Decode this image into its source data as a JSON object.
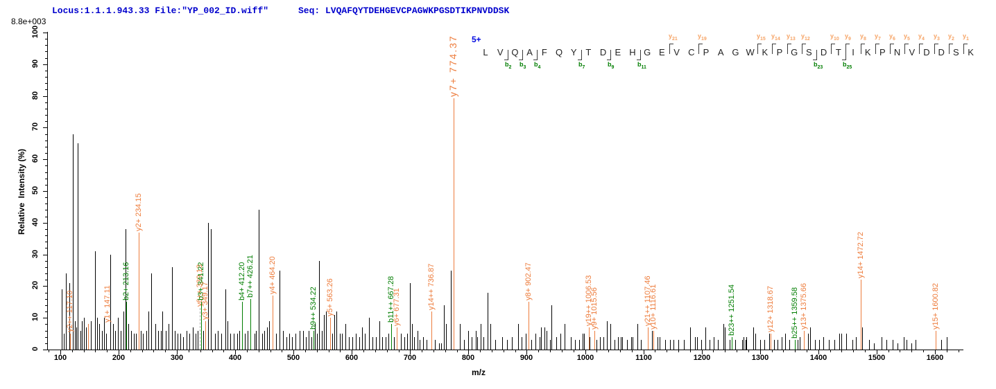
{
  "header": {
    "locus_file": "Locus:1.1.1.943.33 File:\"YP_002_ID.wiff\"",
    "seq_label": "Seq: LVQAFQYTDEHGEVCPAGWKPGSDTIKPNVDDSK",
    "intensity_scale": "8.8e+003"
  },
  "colors": {
    "header_blue": "#0000CD",
    "y_ion": "#ED7C3C",
    "b_ion": "#007D00",
    "y_seq_label": "#F6A365",
    "peak_black": "#000000",
    "dashed_gray": "#ABABAB",
    "axis": "#000000"
  },
  "sequence": {
    "charge_label": "5+",
    "residues": "LVQAFQYTDEHGEVCPAGWKPGSDTIKPNVDDSK",
    "y_ions": [
      {
        "base": "y",
        "count": 21
      },
      {
        "base": "y",
        "count": 19
      },
      {
        "base": "y",
        "count": 15
      },
      {
        "base": "y",
        "count": 14
      },
      {
        "base": "y",
        "count": 13
      },
      {
        "base": "y",
        "count": 12
      },
      {
        "base": "y",
        "count": 10
      },
      {
        "base": "y",
        "count": 9
      },
      {
        "base": "y",
        "count": 8
      },
      {
        "base": "y",
        "count": 7
      },
      {
        "base": "y",
        "count": 6
      },
      {
        "base": "y",
        "count": 5
      },
      {
        "base": "y",
        "count": 4
      },
      {
        "base": "y",
        "count": 3
      },
      {
        "base": "y",
        "count": 2
      },
      {
        "base": "y",
        "count": 1
      }
    ],
    "b_ions": [
      {
        "base": "b",
        "count": 2,
        "after": 2
      },
      {
        "base": "b",
        "count": 3,
        "after": 3
      },
      {
        "base": "b",
        "count": 4,
        "after": 4
      },
      {
        "base": "b",
        "count": 7,
        "after": 7
      },
      {
        "base": "b",
        "count": 9,
        "after": 9
      },
      {
        "base": "b",
        "count": 11,
        "after": 11
      },
      {
        "base": "b",
        "count": 23,
        "after": 23
      },
      {
        "base": "b",
        "count": 25,
        "after": 25
      }
    ]
  },
  "chart_data": {
    "type": "bar",
    "subtype": "ms2-centroid-spectrum",
    "title": "",
    "xlabel": "m/z",
    "ylabel": "Relative  Intensity (%)",
    "xlim": [
      77,
      1645
    ],
    "ylim": [
      0,
      100
    ],
    "grid": false,
    "x_ticks": [
      100,
      200,
      300,
      400,
      500,
      600,
      700,
      800,
      900,
      1000,
      1100,
      1200,
      1300,
      1400,
      1500,
      1600
    ],
    "y_ticks": [
      0,
      10,
      20,
      30,
      40,
      50,
      60,
      70,
      80,
      90,
      100
    ],
    "x_minor_step": 20,
    "y_minor_step": 2,
    "intensity_scale": "8.8e+003",
    "base_peak_label": "y7+ 774.37",
    "assigned_peaks": [
      {
        "ion": "y",
        "label": "y2++ 117.10",
        "mz": 117.1,
        "intensity": 5
      },
      {
        "ion": "y",
        "label": "y1+ 147.11",
        "mz": 147.11,
        "intensity": 8,
        "ldx": 28
      },
      {
        "ion": "b",
        "label": "b2+ 213.16",
        "mz": 213.16,
        "intensity": 15
      },
      {
        "ion": "y",
        "label": "y2+ 234.15",
        "mz": 234.15,
        "intensity": 37
      },
      {
        "ion": "y",
        "label": "y6++ 339.13",
        "mz": 339.13,
        "intensity": 13,
        "dashed": true
      },
      {
        "ion": "b",
        "label": "b3+ 341.22",
        "mz": 341.22,
        "intensity": 15
      },
      {
        "ion": "y",
        "label": "y3+ 349.17",
        "mz": 349.17,
        "intensity": 9
      },
      {
        "ion": "b",
        "label": "b4+ 412.20",
        "mz": 412.2,
        "intensity": 15
      },
      {
        "ion": "b",
        "label": "b7++ 426.21",
        "mz": 426.21,
        "intensity": 16
      },
      {
        "ion": "y",
        "label": "y4+ 464.20",
        "mz": 464.2,
        "intensity": 17
      },
      {
        "ion": "b",
        "label": "b9++ 534.22",
        "mz": 534.22,
        "intensity": 6
      },
      {
        "ion": "y",
        "label": "y5+ 563.26",
        "mz": 563.26,
        "intensity": 10
      },
      {
        "ion": "b",
        "label": "b11++ 667.28",
        "mz": 667.28,
        "intensity": 8
      },
      {
        "ion": "y",
        "label": "y6+ 677.31",
        "mz": 677.31,
        "intensity": 7
      },
      {
        "ion": "y",
        "label": "y14++ 736.87",
        "mz": 736.87,
        "intensity": 12
      },
      {
        "ion": "y",
        "label": "y7+ 774.37",
        "mz": 774.37,
        "intensity": 100
      },
      {
        "ion": "y",
        "label": "y8+ 902.47",
        "mz": 902.47,
        "intensity": 15
      },
      {
        "ion": "y",
        "label": "y19++ 1006.53",
        "mz": 1006.53,
        "intensity": 7
      },
      {
        "ion": "y",
        "label": "y9+ 1015.56",
        "mz": 1015.56,
        "intensity": 6
      },
      {
        "ion": "y",
        "label": "y21++ 1107.46",
        "mz": 1107.46,
        "intensity": 7
      },
      {
        "ion": "y",
        "label": "y10+ 1116.61",
        "mz": 1116.61,
        "intensity": 6
      },
      {
        "ion": "b",
        "label": "b23++ 1251.54",
        "mz": 1251.54,
        "intensity": 4
      },
      {
        "ion": "y",
        "label": "y12+ 1318.67",
        "mz": 1318.67,
        "intensity": 5
      },
      {
        "ion": "b",
        "label": "b25++ 1359.58",
        "mz": 1359.58,
        "intensity": 3
      },
      {
        "ion": "y",
        "label": "y13+ 1375.66",
        "mz": 1375.66,
        "intensity": 6
      },
      {
        "ion": "y",
        "label": "y14+ 1472.72",
        "mz": 1472.72,
        "intensity": 22
      },
      {
        "ion": "y",
        "label": "y15+ 1600.82",
        "mz": 1600.82,
        "intensity": 6
      }
    ],
    "unassigned_peaks": [
      [
        102,
        19
      ],
      [
        106,
        5
      ],
      [
        110,
        24
      ],
      [
        115,
        21
      ],
      [
        121,
        68
      ],
      [
        125,
        9
      ],
      [
        127,
        7
      ],
      [
        130,
        65
      ],
      [
        134,
        6
      ],
      [
        137,
        9
      ],
      [
        140,
        10
      ],
      [
        144,
        7
      ],
      [
        148,
        5
      ],
      [
        152,
        9
      ],
      [
        159,
        31
      ],
      [
        163,
        10
      ],
      [
        167,
        8
      ],
      [
        171,
        6
      ],
      [
        175,
        10
      ],
      [
        179,
        5
      ],
      [
        186,
        30
      ],
      [
        190,
        8
      ],
      [
        194,
        6
      ],
      [
        199,
        10
      ],
      [
        204,
        6
      ],
      [
        208,
        12
      ],
      [
        212,
        38
      ],
      [
        217,
        8
      ],
      [
        221,
        6
      ],
      [
        226,
        5
      ],
      [
        230,
        5
      ],
      [
        238,
        6
      ],
      [
        242,
        5
      ],
      [
        247,
        6
      ],
      [
        251,
        12
      ],
      [
        256,
        24
      ],
      [
        263,
        8
      ],
      [
        268,
        6
      ],
      [
        272,
        6
      ],
      [
        275,
        12
      ],
      [
        281,
        6
      ],
      [
        286,
        8
      ],
      [
        291,
        26
      ],
      [
        296,
        6
      ],
      [
        301,
        5
      ],
      [
        306,
        5
      ],
      [
        311,
        4
      ],
      [
        316,
        6
      ],
      [
        321,
        5
      ],
      [
        327,
        7
      ],
      [
        332,
        5
      ],
      [
        336,
        6
      ],
      [
        345,
        6
      ],
      [
        353,
        40
      ],
      [
        358,
        38
      ],
      [
        365,
        5
      ],
      [
        370,
        6
      ],
      [
        376,
        5
      ],
      [
        383,
        19
      ],
      [
        387,
        9
      ],
      [
        392,
        5
      ],
      [
        397,
        5
      ],
      [
        403,
        5
      ],
      [
        407,
        6
      ],
      [
        417,
        5
      ],
      [
        421,
        6
      ],
      [
        433,
        5
      ],
      [
        436,
        6
      ],
      [
        440,
        44
      ],
      [
        446,
        5
      ],
      [
        450,
        6
      ],
      [
        454,
        7
      ],
      [
        458,
        9
      ],
      [
        470,
        5
      ],
      [
        476,
        25
      ],
      [
        482,
        6
      ],
      [
        488,
        4
      ],
      [
        493,
        5
      ],
      [
        497,
        4
      ],
      [
        503,
        5
      ],
      [
        510,
        6
      ],
      [
        516,
        6
      ],
      [
        521,
        4
      ],
      [
        526,
        6
      ],
      [
        531,
        4
      ],
      [
        536,
        8
      ],
      [
        540,
        5
      ],
      [
        544,
        28
      ],
      [
        548,
        6
      ],
      [
        552,
        11
      ],
      [
        556,
        12
      ],
      [
        566,
        5
      ],
      [
        570,
        11
      ],
      [
        573,
        12
      ],
      [
        579,
        5
      ],
      [
        583,
        5
      ],
      [
        589,
        8
      ],
      [
        595,
        4
      ],
      [
        601,
        4
      ],
      [
        607,
        5
      ],
      [
        613,
        4
      ],
      [
        618,
        7
      ],
      [
        622,
        5
      ],
      [
        629,
        10
      ],
      [
        635,
        4
      ],
      [
        641,
        4
      ],
      [
        647,
        9
      ],
      [
        652,
        4
      ],
      [
        658,
        4
      ],
      [
        663,
        5
      ],
      [
        672,
        4
      ],
      [
        684,
        5
      ],
      [
        690,
        4
      ],
      [
        695,
        5
      ],
      [
        700,
        21
      ],
      [
        703,
        8
      ],
      [
        707,
        4
      ],
      [
        713,
        6
      ],
      [
        716,
        3
      ],
      [
        722,
        4
      ],
      [
        728,
        3
      ],
      [
        742,
        3
      ],
      [
        749,
        2
      ],
      [
        753,
        2
      ],
      [
        758,
        14
      ],
      [
        761,
        8
      ],
      [
        770,
        25
      ],
      [
        785,
        8
      ],
      [
        792,
        3
      ],
      [
        799,
        6
      ],
      [
        805,
        4
      ],
      [
        812,
        6
      ],
      [
        815,
        4
      ],
      [
        821,
        8
      ],
      [
        826,
        4
      ],
      [
        833,
        18
      ],
      [
        838,
        8
      ],
      [
        846,
        3
      ],
      [
        858,
        4
      ],
      [
        866,
        3
      ],
      [
        874,
        4
      ],
      [
        885,
        8
      ],
      [
        891,
        4
      ],
      [
        898,
        5
      ],
      [
        908,
        3
      ],
      [
        915,
        5
      ],
      [
        922,
        4
      ],
      [
        925,
        7
      ],
      [
        930,
        7
      ],
      [
        934,
        6
      ],
      [
        940,
        3
      ],
      [
        942,
        14
      ],
      [
        950,
        4
      ],
      [
        958,
        5
      ],
      [
        965,
        8
      ],
      [
        975,
        4
      ],
      [
        983,
        3
      ],
      [
        990,
        3
      ],
      [
        996,
        5
      ],
      [
        998,
        5
      ],
      [
        1008,
        4
      ],
      [
        1019,
        3
      ],
      [
        1025,
        4
      ],
      [
        1031,
        4
      ],
      [
        1037,
        9
      ],
      [
        1043,
        8
      ],
      [
        1050,
        3
      ],
      [
        1057,
        4
      ],
      [
        1061,
        4
      ],
      [
        1064,
        4
      ],
      [
        1072,
        3
      ],
      [
        1079,
        4
      ],
      [
        1081,
        4
      ],
      [
        1090,
        8
      ],
      [
        1096,
        3
      ],
      [
        1108,
        4
      ],
      [
        1115,
        6
      ],
      [
        1124,
        4
      ],
      [
        1128,
        4
      ],
      [
        1137,
        3
      ],
      [
        1146,
        3
      ],
      [
        1152,
        3
      ],
      [
        1160,
        3
      ],
      [
        1170,
        3
      ],
      [
        1180,
        7
      ],
      [
        1188,
        4
      ],
      [
        1192,
        4
      ],
      [
        1199,
        3
      ],
      [
        1206,
        7
      ],
      [
        1213,
        3
      ],
      [
        1221,
        4
      ],
      [
        1228,
        3
      ],
      [
        1237,
        8
      ],
      [
        1240,
        7
      ],
      [
        1248,
        3
      ],
      [
        1258,
        3
      ],
      [
        1269,
        3
      ],
      [
        1272,
        4
      ],
      [
        1275,
        3
      ],
      [
        1277,
        4
      ],
      [
        1288,
        7
      ],
      [
        1292,
        5
      ],
      [
        1300,
        3
      ],
      [
        1308,
        3
      ],
      [
        1316,
        5
      ],
      [
        1324,
        3
      ],
      [
        1330,
        3
      ],
      [
        1337,
        4
      ],
      [
        1343,
        5
      ],
      [
        1350,
        3
      ],
      [
        1365,
        3
      ],
      [
        1368,
        4
      ],
      [
        1382,
        5
      ],
      [
        1386,
        7
      ],
      [
        1394,
        3
      ],
      [
        1402,
        3
      ],
      [
        1409,
        4
      ],
      [
        1418,
        3
      ],
      [
        1428,
        3
      ],
      [
        1436,
        5
      ],
      [
        1440,
        5
      ],
      [
        1448,
        5
      ],
      [
        1458,
        3
      ],
      [
        1465,
        4
      ],
      [
        1475,
        7
      ],
      [
        1487,
        3
      ],
      [
        1495,
        2
      ],
      [
        1509,
        4
      ],
      [
        1517,
        3
      ],
      [
        1527,
        3
      ],
      [
        1536,
        2
      ],
      [
        1546,
        4
      ],
      [
        1551,
        3
      ],
      [
        1560,
        2
      ],
      [
        1567,
        3
      ],
      [
        1611,
        3
      ],
      [
        1620,
        4
      ]
    ]
  }
}
